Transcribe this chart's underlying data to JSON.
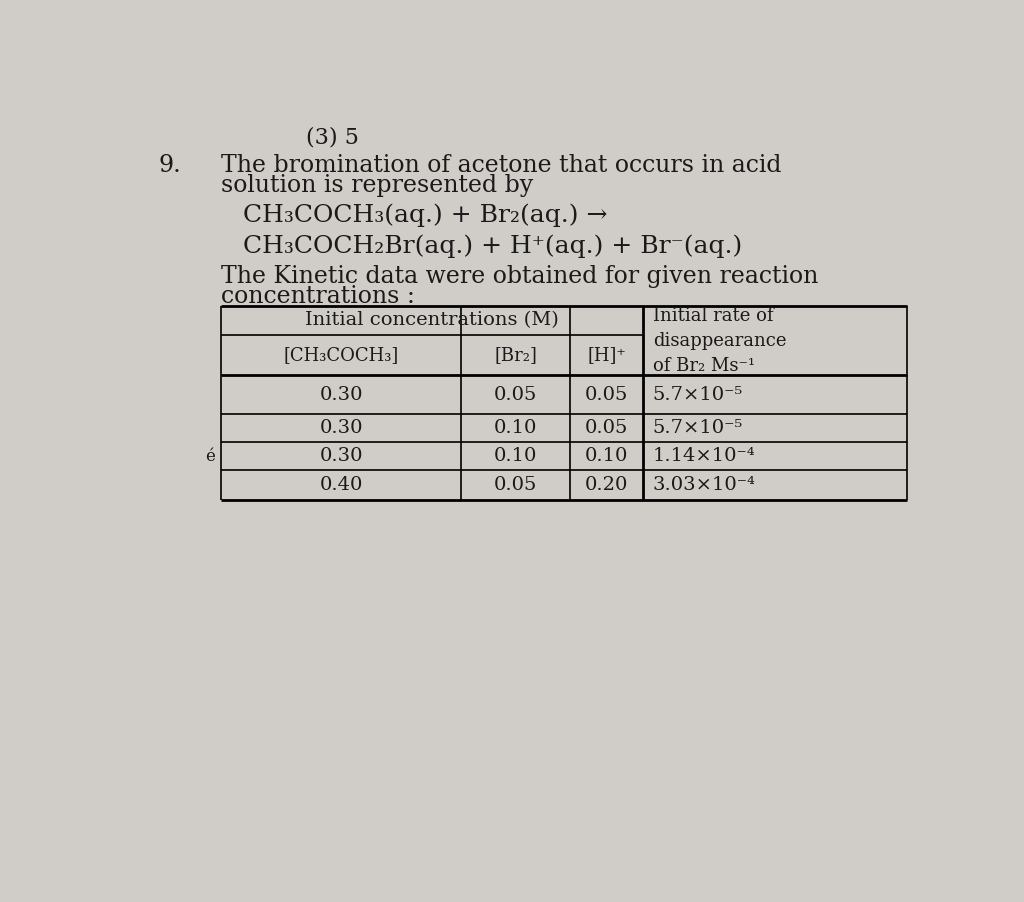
{
  "background_color": "#d0ccc8",
  "title_number": "9.",
  "intro_text_line1": "The bromination of acetone that occurs in acid",
  "intro_text_line2": "solution is represented by",
  "equation_line1": "CH₃COCH₃(aq.) + Br₂(aq.) →",
  "equation_line2": "CH₃COCH₂Br(aq.) + H⁺(aq.) + Br⁻(aq.)",
  "kinetic_line1": "The Kinetic data were obtained for given reaction",
  "kinetic_line2": "concentrations :",
  "header_top": "Initial concentrations (M)",
  "header_col1": "[CH₃COCH₃]",
  "header_col2": "[Br₂]",
  "header_col3": "[H]⁺",
  "header_col4_line1": "Initial rate of",
  "header_col4_line2": "disappearance",
  "header_col4_line3": "of Br₂ Ms⁻¹",
  "table_data": [
    [
      "0.30",
      "0.05",
      "0.05",
      "5.7×10⁻⁵"
    ],
    [
      "0.30",
      "0.10",
      "0.05",
      "5.7×10⁻⁵"
    ],
    [
      "0.30",
      "0.10",
      "0.10",
      "1.14×10⁻⁴"
    ],
    [
      "0.40",
      "0.05",
      "0.20",
      "3.03×10⁻⁴"
    ]
  ],
  "top_label": "(3) 5",
  "font_color": "#1a1a1a",
  "col_bounds": [
    120,
    430,
    570,
    665,
    1005
  ],
  "r0": 645,
  "r1": 608,
  "r2": 555,
  "r4": 505,
  "r5": 468,
  "r6": 432,
  "r7": 393
}
